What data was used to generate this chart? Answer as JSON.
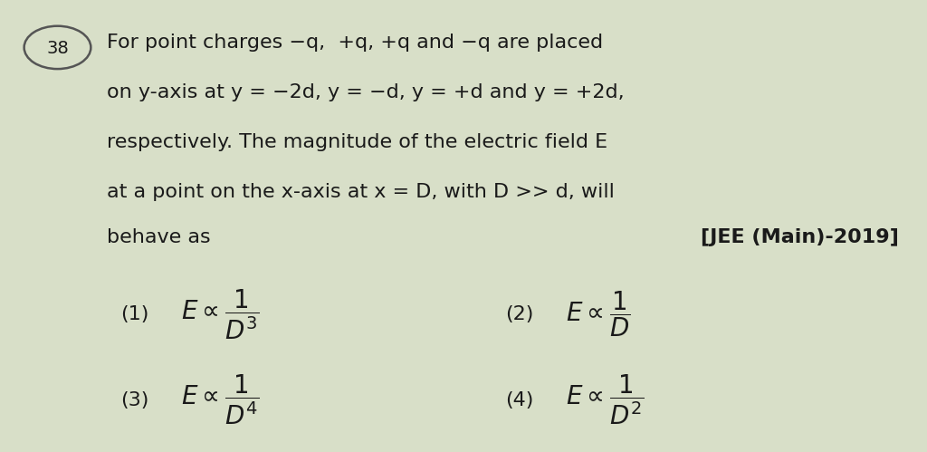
{
  "bg_color": "#d8dfc8",
  "fig_width": 10.24,
  "fig_height": 4.99,
  "text_color": "#1a1a1a",
  "question_number": "38",
  "line1": "For point charges −q,  +q, +q and −q are placed",
  "line2": "on y-axis at y = −2d, y = −d, y = +d and y = +2d,",
  "line3": "respectively. The magnitude of the electric field E",
  "line4": "at a point on the x-axis at x = D, with D >> d, will",
  "line5": "behave as",
  "ref": "[JEE (Main)-2019]",
  "opt1_num": "(1)",
  "opt1_math": "$E \\propto \\dfrac{1}{D^3}$",
  "opt2_num": "(2)",
  "opt2_math": "$E \\propto \\dfrac{1}{D}$",
  "opt3_num": "(3)",
  "opt3_math": "$E \\propto \\dfrac{1}{D^4}$",
  "opt4_num": "(4)",
  "opt4_math": "$E \\propto \\dfrac{1}{D^2}$",
  "fs_main": 16,
  "fs_opt_num": 16,
  "fs_opt_math": 20,
  "fs_ref": 16,
  "fs_qnum": 14
}
